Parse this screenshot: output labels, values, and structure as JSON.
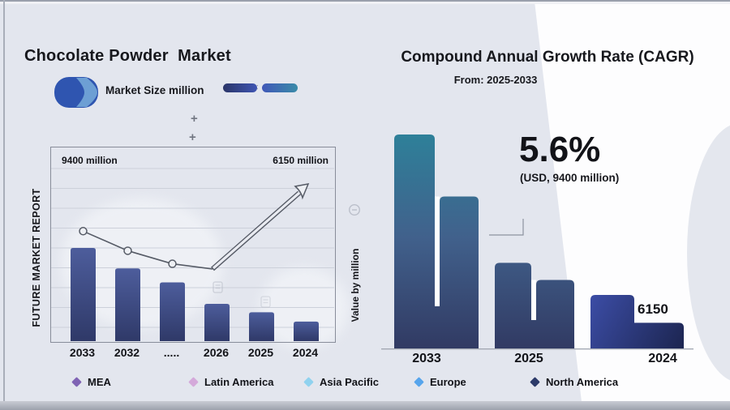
{
  "header": {
    "title": "Chocolate Powder  Market",
    "series_legend": {
      "label": "Market Size million",
      "separator": ":"
    }
  },
  "right_panel": {
    "title": "Compound Annual Growth Rate (CAGR)",
    "subtitle": "From: 2025-2033",
    "cagr": "5.6%",
    "cagr_note": "(USD, 9400 million)"
  },
  "side_labels": {
    "left_watermark": "FUTURE MARKET REPORT",
    "right_axis": "Value by million"
  },
  "decor": {
    "plus_top": "+",
    "plus_bottom": "+"
  },
  "legend": {
    "items": [
      {
        "label": "MEA",
        "color": "#7f63b4"
      },
      {
        "label": "Latin America",
        "color": "#d4a9da"
      },
      {
        "label": "Asia Pacific",
        "color": "#90d2ef"
      },
      {
        "label": "Europe",
        "color": "#57a5ec"
      },
      {
        "label": "North America",
        "color": "#2c3a69"
      }
    ]
  },
  "colors": {
    "page_bg": "#e3e6ee",
    "band_white": "#fdfdfe",
    "text": "#121318",
    "left_bar_gradient": [
      "#4d5d9c",
      "#2f3968"
    ],
    "teal_bar_gradient": [
      "#2e8099",
      "#41618c",
      "#313a63"
    ],
    "navy_bar_gradient": [
      "#3c4da6",
      "#1c2550"
    ],
    "line_color": "#565b66",
    "grid_color": "#ccd0da"
  },
  "chart_data": [
    {
      "type": "bar",
      "title": "Market Size million",
      "categories": [
        "2033",
        "2032",
        ".....",
        "2026",
        "2025",
        "2024"
      ],
      "values": [
        100,
        78,
        63,
        40,
        31,
        21
      ],
      "value_units": "relative height, no numeric axis shown",
      "annotations": {
        "top_left": "9400 million",
        "top_right": "6150 million"
      },
      "line_overlay": {
        "x_indices": [
          0,
          1,
          2
        ],
        "values": [
          118,
          97,
          83
        ],
        "trend_arrow": "up-right"
      },
      "grid": true,
      "xlabel": "",
      "ylabel": ""
    },
    {
      "type": "bar",
      "categories": [
        "2033",
        "2025",
        "2024"
      ],
      "series": [
        {
          "name": "series-a",
          "values": [
            100,
            40,
            25
          ]
        },
        {
          "name": "series-b",
          "values": [
            71,
            32,
            12
          ]
        }
      ],
      "value_units": "relative height, no numeric axis shown",
      "annotations": {
        "value_2024": "6150"
      },
      "ylabel": "Value by million",
      "grid": false
    }
  ]
}
